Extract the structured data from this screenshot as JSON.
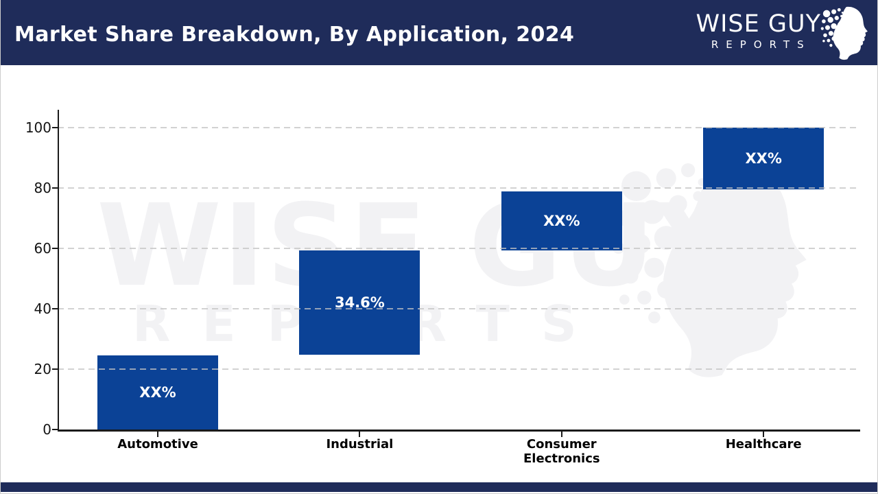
{
  "header": {
    "title": "Market Share Breakdown, By Application, 2024",
    "logo": {
      "line1": "WISE GUY",
      "line2": "REPORTS"
    }
  },
  "watermark": {
    "line1": "WISE GUY",
    "line2": "REPORTS"
  },
  "chart_data": {
    "type": "bar",
    "subtype": "floating-segment-waterfall",
    "title": "Market Share Breakdown, By Application, 2024",
    "xlabel": "",
    "ylabel": "",
    "ylim": [
      0,
      100
    ],
    "y_ticks": [
      0,
      20,
      40,
      60,
      80,
      100
    ],
    "y_tick_labels": [
      "0",
      "20",
      "40",
      "60",
      "80",
      "100"
    ],
    "grid": "horizontal dashed, light gray, drawn over bars",
    "legend": "none",
    "bar_color": "#0b4296",
    "categories": [
      "Automotive",
      "Industrial",
      "Consumer Electronics",
      "Healthcare"
    ],
    "bars": [
      {
        "category_lines": [
          "Automotive"
        ],
        "start": 0,
        "end": 24.5,
        "value": 24.5,
        "value_label": "XX%"
      },
      {
        "category_lines": [
          "Industrial"
        ],
        "start": 24.7,
        "end": 59.3,
        "value": 34.6,
        "value_label": "34.6%"
      },
      {
        "category_lines": [
          "Consumer",
          "Electronics"
        ],
        "start": 59.4,
        "end": 78.9,
        "value": 19.5,
        "value_label": "XX%"
      },
      {
        "category_lines": [
          "Healthcare"
        ],
        "start": 79.5,
        "end": 100,
        "value": 20.5,
        "value_label": "XX%"
      }
    ]
  },
  "colors": {
    "header_bg": "#1f2c5a",
    "footer_bg": "#1f2c5a",
    "bar": "#0b4296",
    "watermark": "#f2f2f4",
    "gridline": "#c9c9c9",
    "axis": "#1a1a1a",
    "title_text": "#ffffff"
  }
}
